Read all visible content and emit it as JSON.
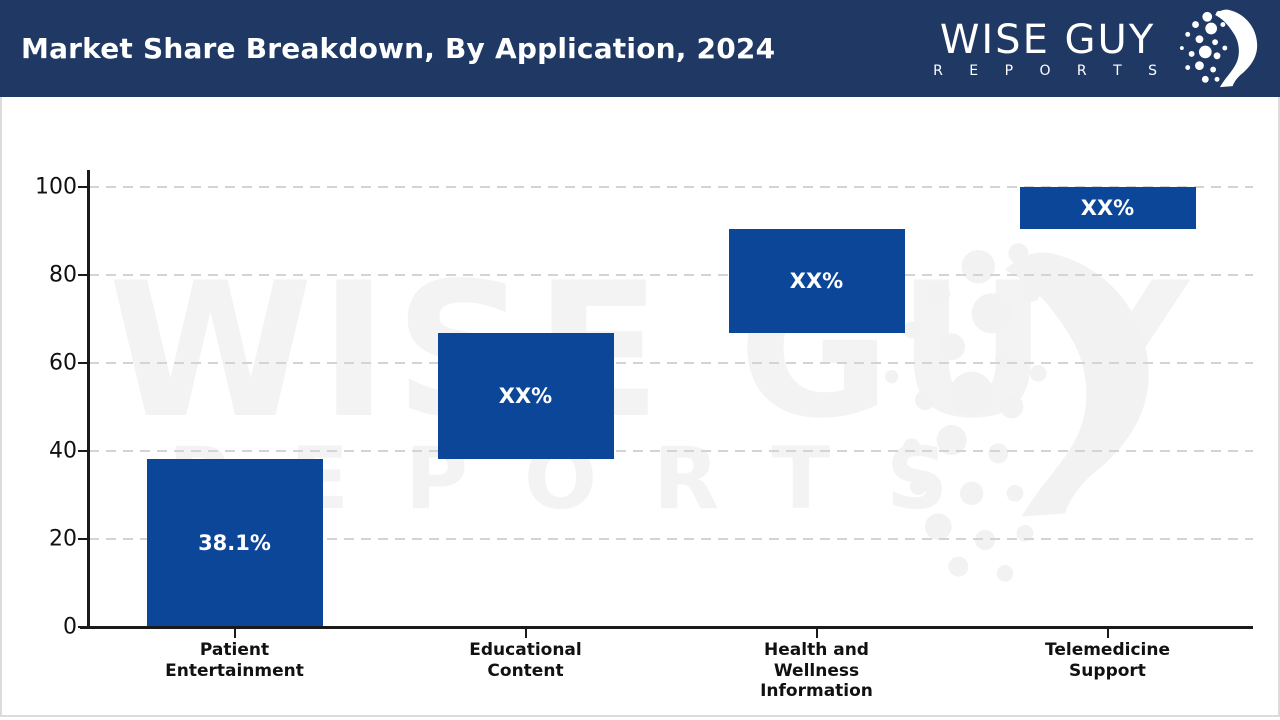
{
  "header": {
    "title": "Market Share Breakdown, By Application, 2024",
    "bg_color": "#1f3864",
    "logo": {
      "brand_line1": "WISE GUY",
      "brand_line2": "R E P O R T S"
    }
  },
  "watermark": {
    "line1": "WISE GUY",
    "line2": "REPORTS"
  },
  "chart_data": {
    "type": "bar",
    "subtype": "floating-waterfall",
    "title": "Market Share Breakdown, By Application, 2024",
    "categories": [
      "Patient Entertainment",
      "Educational Content",
      "Health and Wellness Information",
      "Telemedicine Support"
    ],
    "category_lines": [
      [
        "Patient",
        "Entertainment"
      ],
      [
        "Educational",
        "Content"
      ],
      [
        "Health and",
        "Wellness",
        "Information"
      ],
      [
        "Telemedicine",
        "Support"
      ]
    ],
    "segments": [
      {
        "category": "Patient Entertainment",
        "start": 0,
        "end": 38.1,
        "label": "38.1%"
      },
      {
        "category": "Educational Content",
        "start": 38.1,
        "end": 66.9,
        "label": "XX%"
      },
      {
        "category": "Health and Wellness Information",
        "start": 66.9,
        "end": 90.5,
        "label": "XX%"
      },
      {
        "category": "Telemedicine Support",
        "start": 90.5,
        "end": 100,
        "label": "XX%"
      }
    ],
    "xlabel": "",
    "ylabel": "",
    "ylim": [
      0,
      100
    ],
    "yticks": [
      0,
      20,
      40,
      60,
      80,
      100
    ],
    "grid": {
      "axis": "y",
      "style": "dashed",
      "color": "#d4d4d4"
    },
    "legend": "none",
    "bar_color": "#0b4699",
    "bar_label_color": "#ffffff",
    "axis_color": "#1a1a1a"
  }
}
